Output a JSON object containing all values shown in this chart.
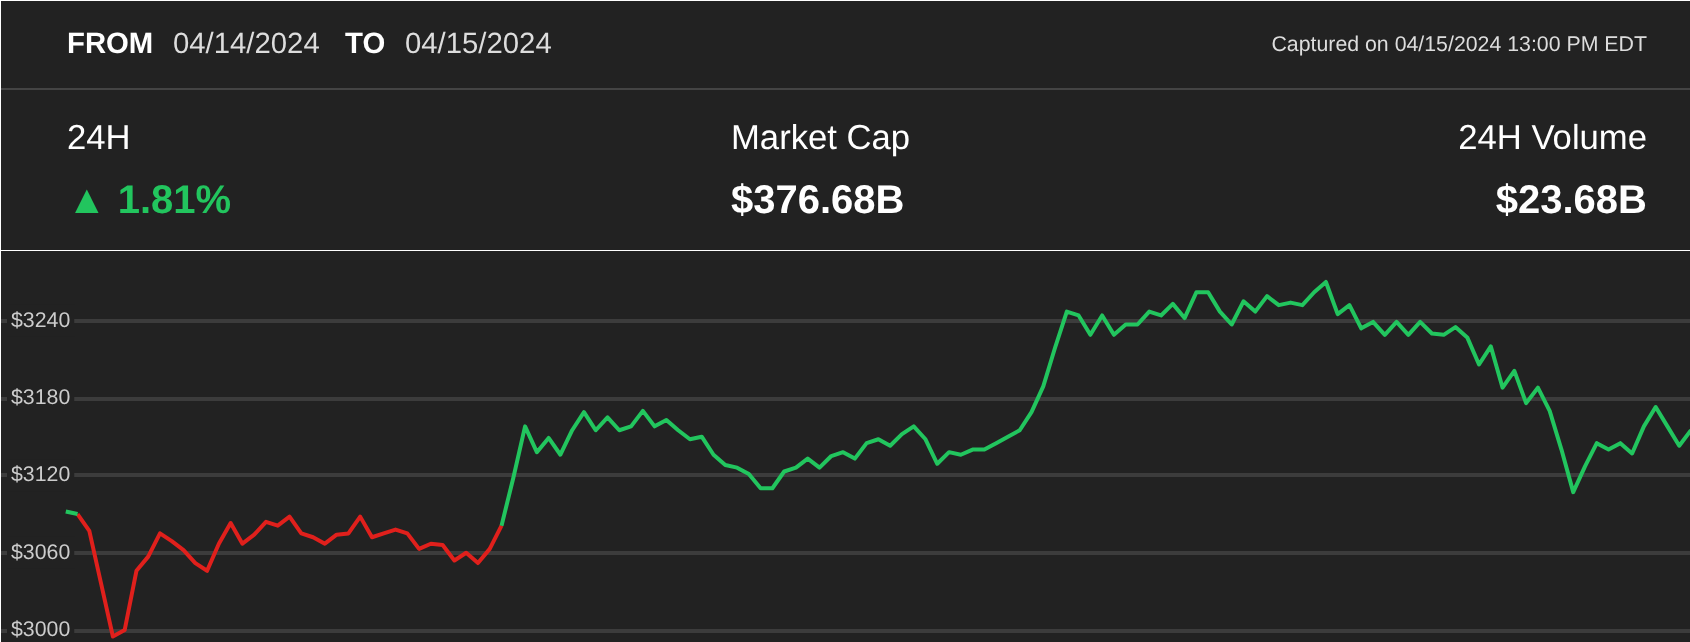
{
  "chart_data": {
    "type": "line",
    "annotations": [
      "FROM",
      "04/14/2024",
      "TO",
      "04/15/2024",
      "Captured on 04/15/2024 13:00 PM EDT",
      "24H",
      "▲ 1.81%",
      "Market Cap",
      "$376.68B",
      "24H Volume",
      "$23.68B"
    ],
    "categories": [
      null,
      null,
      null,
      null,
      null,
      null,
      null,
      null,
      null,
      null,
      null,
      null,
      null,
      null,
      null,
      null,
      null,
      null,
      null,
      null,
      null,
      null,
      null,
      null,
      null,
      null,
      null,
      null,
      null,
      null,
      null,
      null,
      null,
      null,
      null,
      null,
      null,
      null,
      null,
      null,
      null,
      null,
      null,
      null,
      null,
      null,
      null,
      null,
      null,
      null,
      null,
      null,
      null,
      null,
      null,
      null,
      null,
      null,
      null,
      null,
      null,
      null,
      null,
      null,
      null,
      null,
      null,
      null,
      null,
      null,
      null,
      null,
      null,
      null,
      null,
      null,
      null,
      null,
      null,
      null,
      null,
      null,
      null,
      null,
      null,
      null,
      null,
      null,
      null,
      null,
      null,
      null,
      null,
      null,
      null,
      null,
      null,
      null,
      null,
      null,
      null,
      null,
      null,
      null,
      null,
      null,
      null,
      null,
      null,
      null,
      null,
      null,
      null,
      null,
      null,
      null,
      null,
      null,
      null,
      null,
      null,
      null,
      null,
      null,
      null,
      null,
      null,
      null,
      null,
      null,
      null,
      null,
      null,
      null,
      null,
      null,
      null,
      null,
      null
    ],
    "ylim": [
      2990,
      3294
    ],
    "yticks": [
      {
        "value": 3000,
        "label": "$3000"
      },
      {
        "value": 3060,
        "label": "$3060"
      },
      {
        "value": 3120,
        "label": "$3120"
      },
      {
        "value": 3180,
        "label": "$3180"
      },
      {
        "value": 3240,
        "label": "$3240"
      }
    ],
    "tick_labels": "y",
    "grid": "y",
    "marker": "none",
    "line_style": "solid",
    "series": [
      {
        "color": "#e0201c",
        "values": [
          null,
          3090,
          3077,
          3036,
          2995,
          3000,
          3046,
          3057,
          3075,
          3069,
          3062,
          3052,
          3046,
          3067,
          3083,
          3067,
          3074,
          3084,
          3081,
          3088,
          3075,
          3072,
          3067,
          3074,
          3075,
          3088,
          3072,
          3075,
          3078,
          3075,
          3063,
          3067,
          3066,
          3054,
          3060,
          3052,
          3063,
          3081,
          null,
          null,
          null,
          null,
          null,
          null,
          null,
          null,
          null,
          null,
          null,
          null,
          null,
          null,
          null,
          null,
          null,
          null,
          null,
          null,
          null,
          null,
          null,
          null,
          null,
          null,
          null,
          null,
          null,
          null,
          null,
          null,
          null,
          null,
          null,
          null,
          null,
          null,
          null,
          null,
          null,
          null,
          null,
          null,
          null,
          null,
          null,
          null,
          null,
          null,
          null,
          null,
          null,
          null,
          null,
          null,
          null,
          null,
          null,
          null,
          null,
          null,
          null,
          null,
          null,
          null,
          null,
          null,
          null,
          null,
          null,
          null,
          null,
          null,
          null,
          null,
          null,
          null,
          null,
          null,
          null,
          null,
          null,
          null,
          null,
          null,
          null,
          null,
          null,
          null,
          null,
          null,
          null,
          null,
          null,
          null,
          null,
          null,
          null,
          null,
          null
        ]
      },
      {
        "color": "#22c55e",
        "values": [
          3092,
          3090,
          null,
          null,
          null,
          null,
          null,
          null,
          null,
          null,
          null,
          null,
          null,
          null,
          null,
          null,
          null,
          null,
          null,
          null,
          null,
          null,
          null,
          null,
          null,
          null,
          null,
          null,
          null,
          null,
          null,
          null,
          null,
          null,
          null,
          null,
          null,
          null,
          null,
          null,
          null,
          null,
          null,
          null,
          null,
          null,
          null,
          null,
          null,
          null,
          null,
          null,
          null,
          null,
          null,
          null,
          null,
          null,
          null,
          null,
          null,
          null,
          null,
          null,
          null,
          null,
          null,
          null,
          null,
          null,
          null,
          null,
          null,
          null,
          null,
          null,
          null,
          null,
          null,
          null,
          null,
          null,
          null,
          null,
          null,
          null,
          null,
          null,
          null,
          null,
          null,
          null,
          null,
          null,
          null,
          null,
          null,
          null,
          null,
          null,
          null,
          null,
          null,
          null,
          null,
          null,
          null,
          null,
          null,
          null,
          null,
          null,
          null,
          null,
          null,
          null,
          null,
          null,
          null,
          null,
          null,
          null,
          null,
          null,
          null,
          null,
          null,
          null,
          null,
          null,
          null,
          null,
          null,
          null,
          null,
          null,
          null,
          null,
          null
        ]
      },
      {
        "color": "#22c55e",
        "values": [
          null,
          null,
          null,
          null,
          null,
          null,
          null,
          null,
          null,
          null,
          null,
          null,
          null,
          null,
          null,
          null,
          null,
          null,
          null,
          null,
          null,
          null,
          null,
          null,
          null,
          null,
          null,
          null,
          null,
          null,
          null,
          null,
          null,
          null,
          null,
          null,
          null,
          3081,
          3118,
          3158,
          3138,
          3149,
          3136,
          3155,
          3169,
          3155,
          3165,
          3155,
          3158,
          3170,
          3158,
          3163,
          3155,
          3148,
          3150,
          3136,
          3128,
          3126,
          3121,
          3110,
          3110,
          3123,
          3126,
          3133,
          3126,
          3135,
          3138,
          3133,
          3145,
          3148,
          3143,
          3152,
          3158,
          3148,
          3129,
          3138,
          3136,
          3140,
          3140,
          3145,
          3150,
          3155,
          3169,
          3189,
          3219,
          3247,
          3244,
          3229,
          3244,
          3229,
          3237,
          3237,
          3247,
          3244,
          3253,
          3242,
          3262,
          3262,
          3247,
          3237,
          3255,
          3247,
          3259,
          3252,
          3254,
          3252,
          3262,
          3270,
          3245,
          3252,
          3234,
          3239,
          3229,
          3239,
          3229,
          3239,
          3230,
          3229,
          3235,
          3227,
          3206,
          3220,
          3188,
          3201,
          3176,
          3188,
          3170,
          3140,
          3107,
          3127,
          3145,
          3140,
          3145,
          3137,
          3158,
          3173,
          3158,
          3143,
          3155
        ]
      }
    ]
  }
}
